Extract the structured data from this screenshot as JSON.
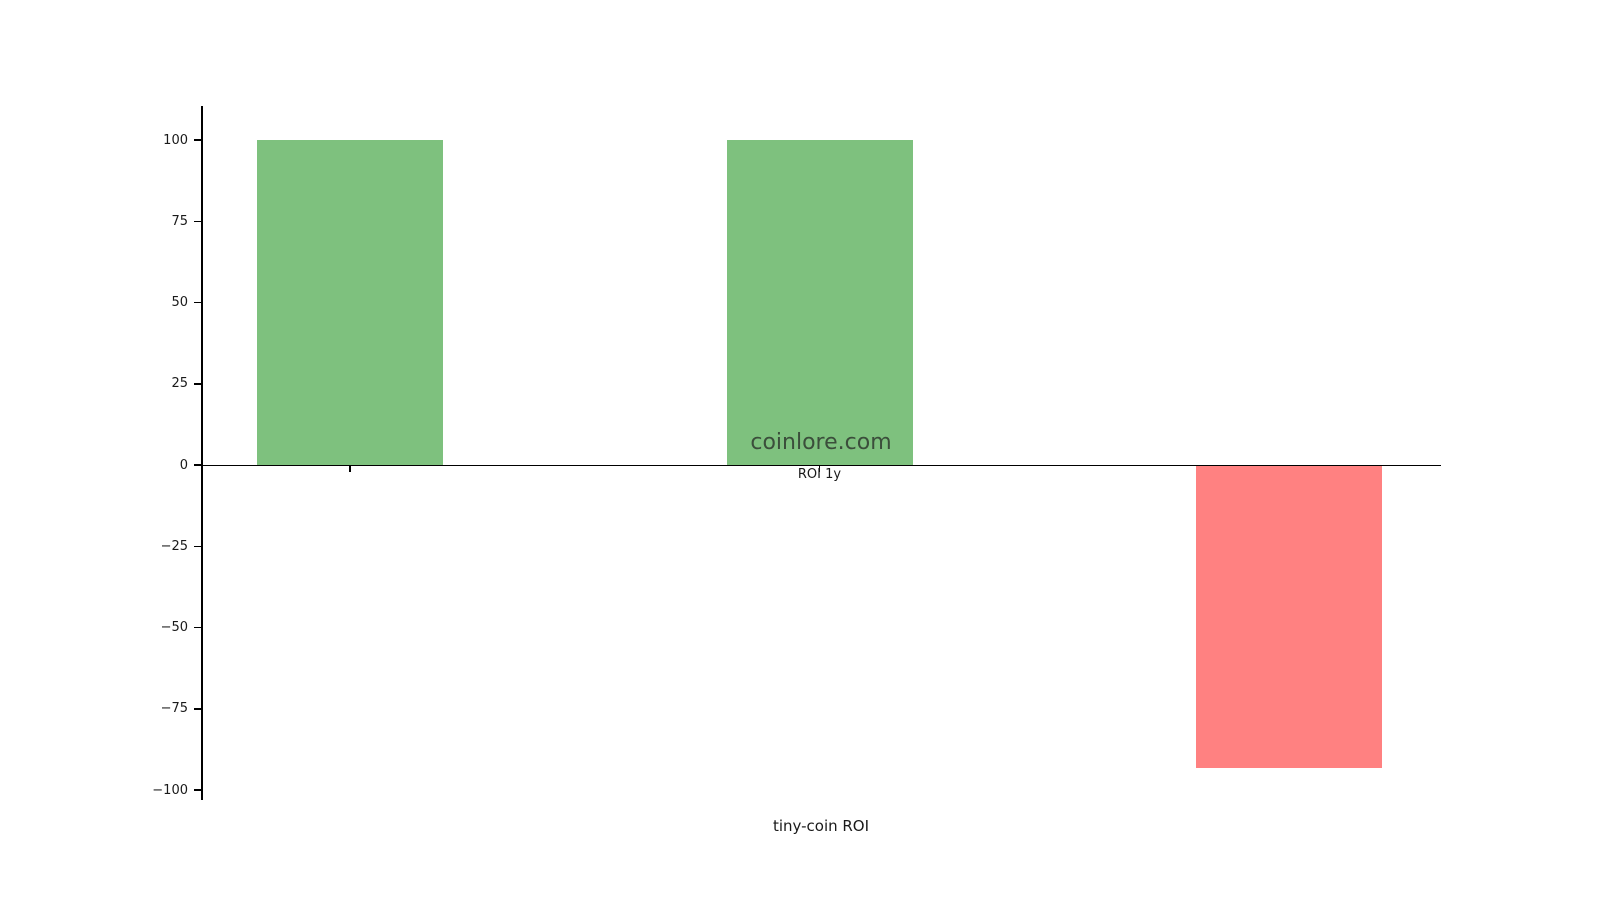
{
  "chart_data": {
    "type": "bar",
    "title": "tiny-coin ROI",
    "watermark": "coinlore.com",
    "categories": [
      "",
      "ROI 1y",
      ""
    ],
    "values": [
      100,
      100,
      -93
    ],
    "bar_colors": [
      "#7ec17e",
      "#7ec17e",
      "#ff8181"
    ],
    "yticks": [
      100,
      75,
      50,
      25,
      0,
      -25,
      -50,
      -75,
      -100
    ],
    "ytick_labels": [
      "100",
      "75",
      "50",
      "25",
      "0",
      "−25",
      "−50",
      "−75",
      "−100"
    ],
    "ylim": [
      -103,
      110
    ],
    "xlabel": "",
    "ylabel": "",
    "grid": false,
    "legend": null,
    "colors": {
      "positive": "#7ec17e",
      "negative": "#ff8181",
      "axis": "#000000",
      "text": "#1a1a1a"
    }
  }
}
